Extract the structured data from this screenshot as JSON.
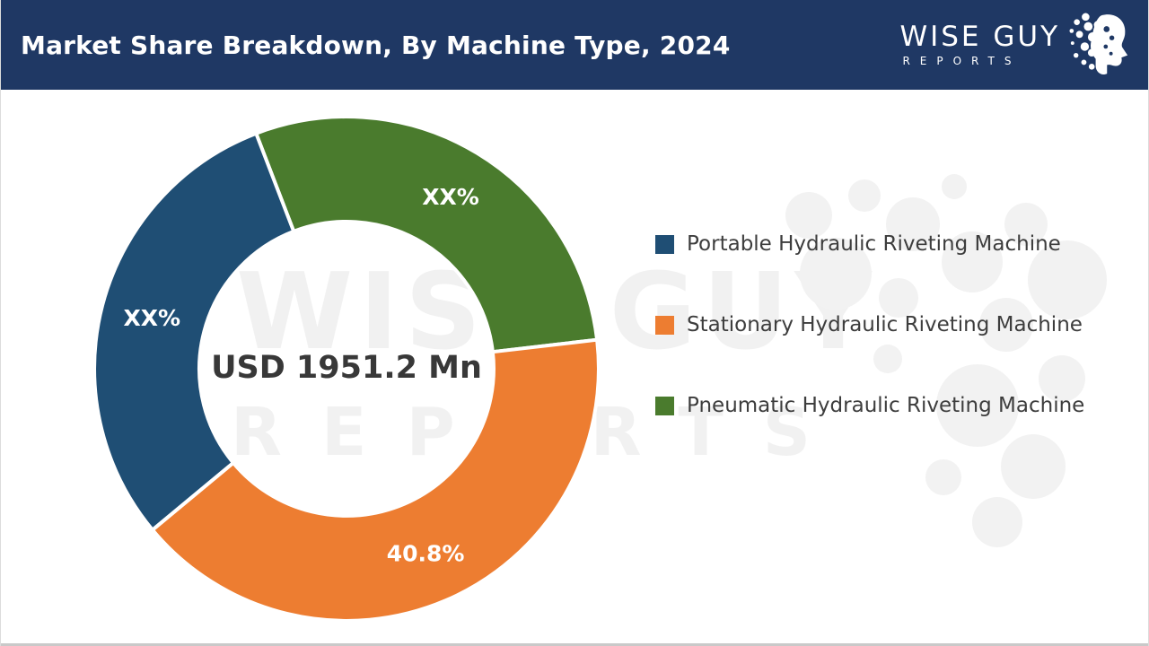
{
  "header": {
    "title": "Market Share Breakdown, By Machine Type, 2024",
    "logo": {
      "name": "WISE GUY",
      "sub": "REPORTS"
    }
  },
  "watermark": {
    "line1": "WISE GUY",
    "line2": "REPORTS"
  },
  "colors": {
    "header_bg": "#1F3864",
    "slice_blue": "#1F4E74",
    "slice_orange": "#ED7D31",
    "slice_green": "#4A7B2D",
    "legend_text": "#3D3D3D",
    "center_text": "#383838"
  },
  "chart_data": {
    "type": "pie",
    "subtype": "donut",
    "title": "Market Share Breakdown, By Machine Type, 2024",
    "center_label": "USD 1951.2 Mn",
    "legend_position": "right",
    "start_angle_deg": -21,
    "draw_sequence": [
      2,
      1,
      0
    ],
    "slices": [
      {
        "key": "portable",
        "name": "Portable Hydraulic Riveting Machine",
        "label": "XX%",
        "est_sweep_pct": 30.2,
        "color": "#1F4E74"
      },
      {
        "key": "stationary",
        "name": "Stationary Hydraulic Riveting Machine",
        "label": "40.8%",
        "est_sweep_pct": 40.8,
        "color": "#ED7D31"
      },
      {
        "key": "pneumatic",
        "name": "Pneumatic Hydraulic Riveting Machine",
        "label": "XX%",
        "est_sweep_pct": 29.0,
        "color": "#4A7B2D"
      }
    ]
  },
  "legend": {
    "items": [
      {
        "label": "Portable Hydraulic Riveting Machine",
        "color": "#1F4E74"
      },
      {
        "label": "Stationary Hydraulic Riveting Machine",
        "color": "#ED7D31"
      },
      {
        "label": "Pneumatic Hydraulic Riveting Machine",
        "color": "#4A7B2D"
      }
    ]
  }
}
